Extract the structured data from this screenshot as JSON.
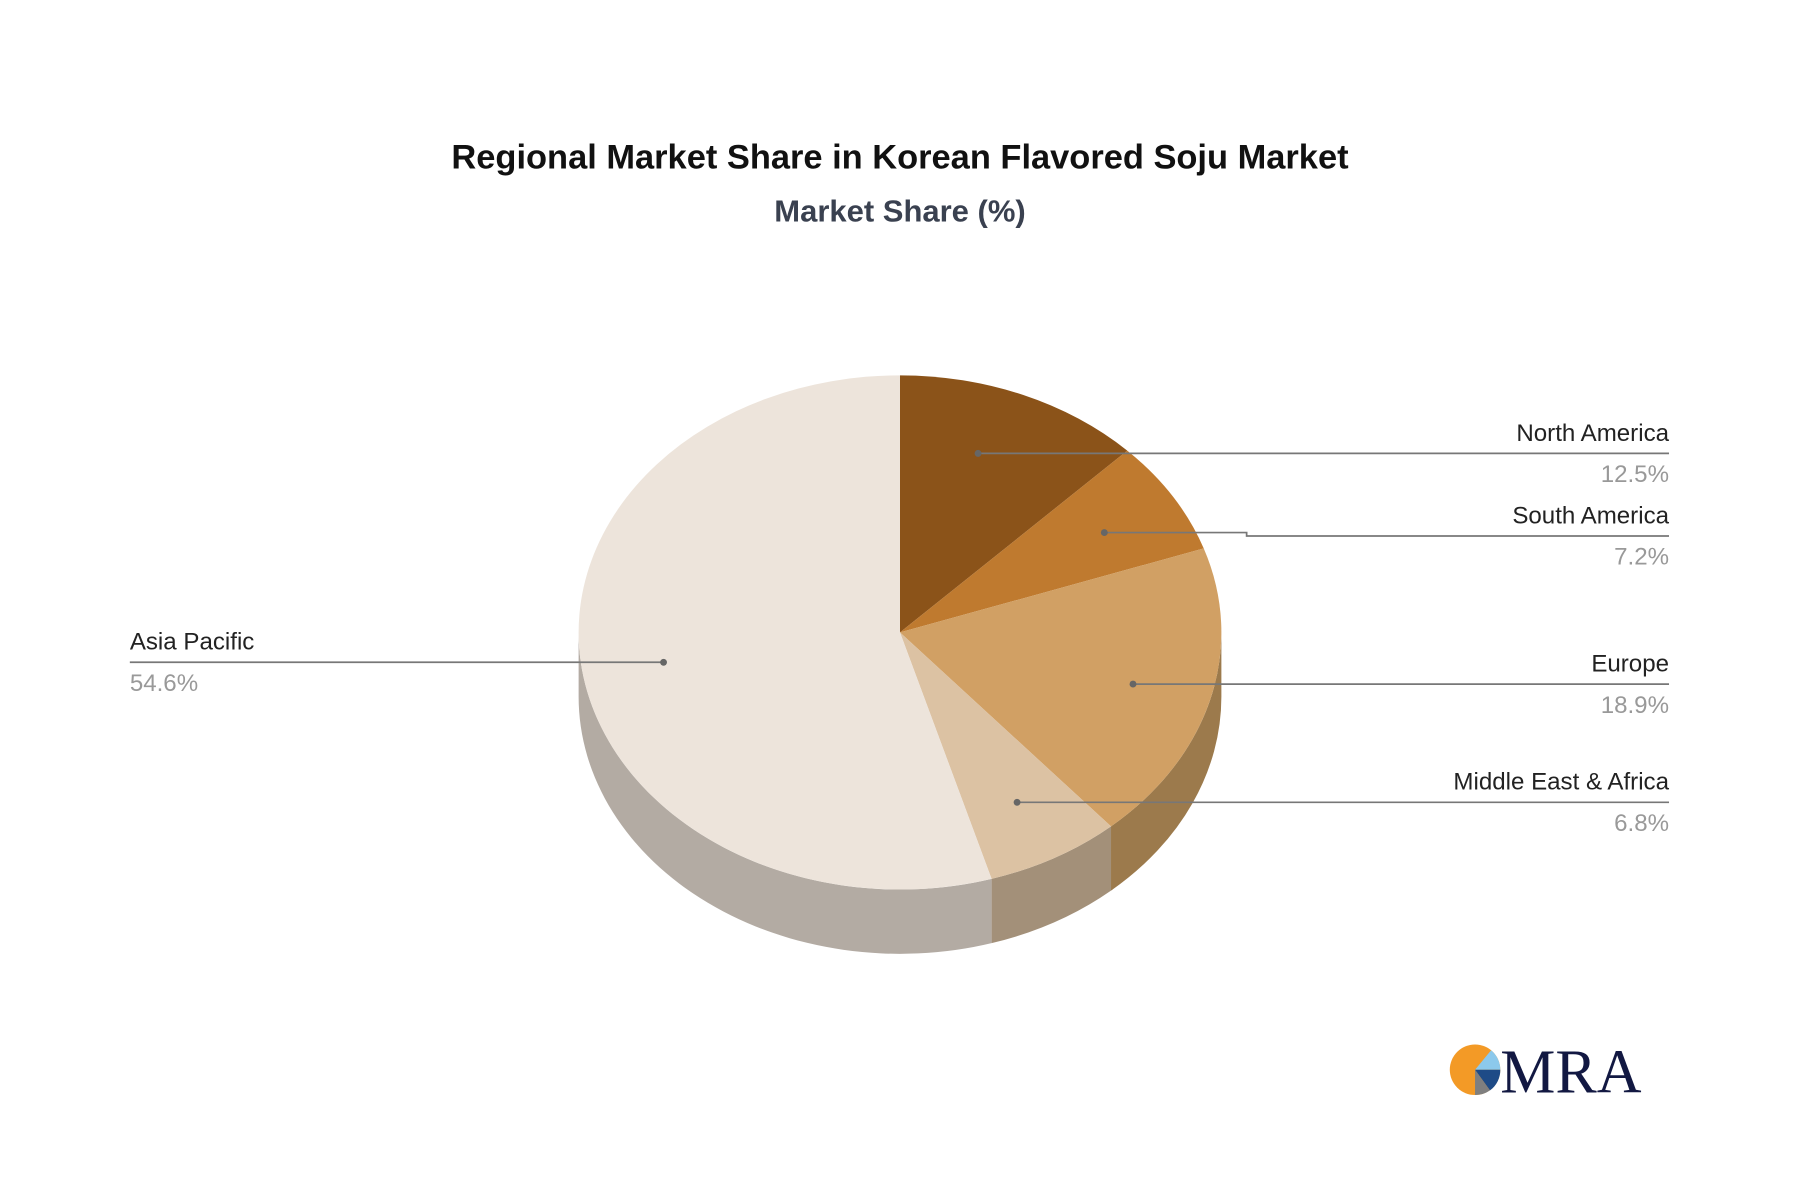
{
  "chart_data": {
    "type": "pie",
    "style": "3d",
    "title": "Regional Market Share in Korean Flavored Soju Market",
    "subtitle": "Market Share (%)",
    "slices": [
      {
        "label": "North America",
        "value": 12.5,
        "display": "12.5%",
        "color": "#8B5319",
        "side": "#6E4214",
        "labelSide": "right"
      },
      {
        "label": "South America",
        "value": 7.2,
        "display": "7.2%",
        "color": "#BF7A2F",
        "side": "#98612A",
        "labelSide": "right"
      },
      {
        "label": "Europe",
        "value": 18.9,
        "display": "18.9%",
        "color": "#D1A064",
        "side": "#9C7A4C",
        "labelSide": "right"
      },
      {
        "label": "Middle East & Africa",
        "value": 6.8,
        "display": "6.8%",
        "color": "#DCC2A3",
        "side": "#A39079",
        "labelSide": "right"
      },
      {
        "label": "Asia Pacific",
        "value": 54.6,
        "display": "54.6%",
        "color": "#EDE4DB",
        "side": "#B3ABA3",
        "labelSide": "left"
      }
    ]
  },
  "logo": {
    "text": "MRA",
    "colors": [
      "#F39A26",
      "#8CC9EC",
      "#1E4B87",
      "#7F7F7F",
      "#121842"
    ]
  }
}
